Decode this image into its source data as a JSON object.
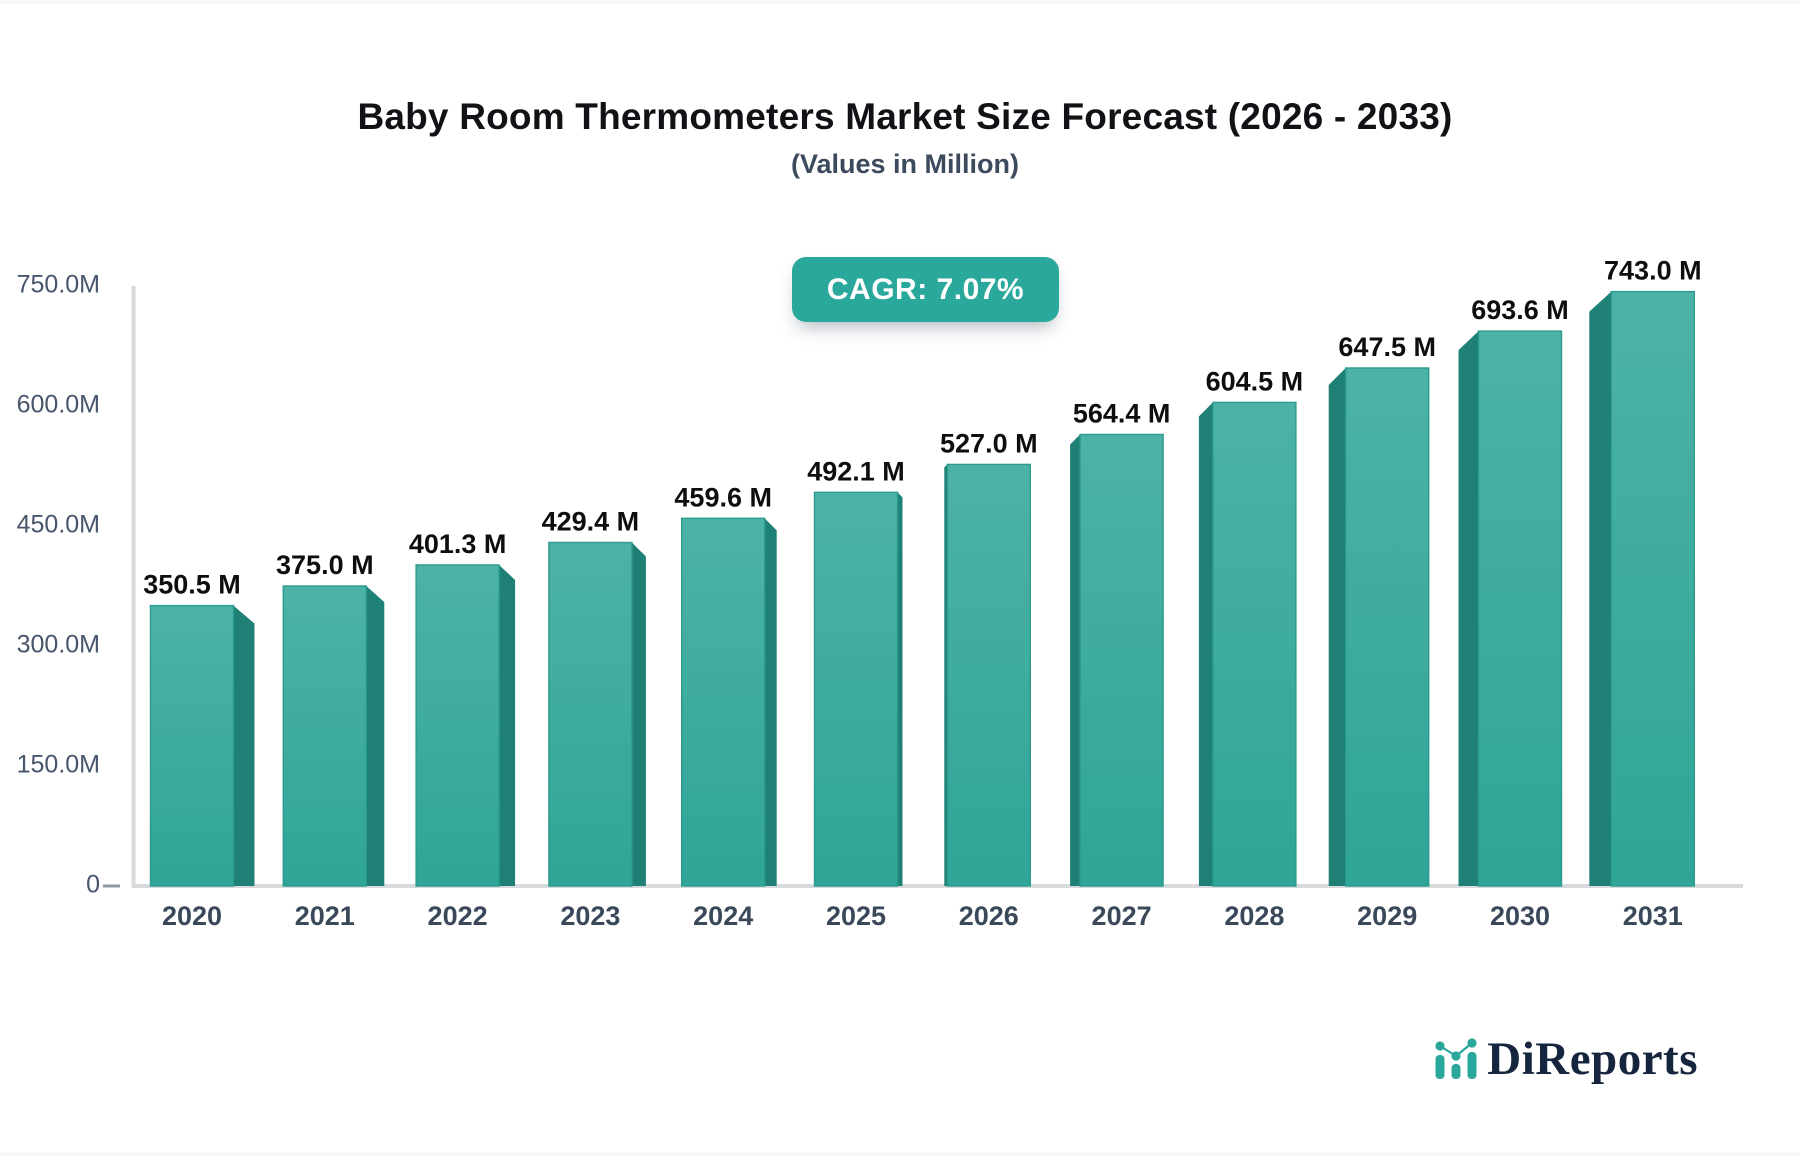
{
  "header": {
    "title": "Baby Room Thermometers Market Size Forecast (2026 - 2033)",
    "subtitle": "(Values in Million)"
  },
  "badge": {
    "label": "CAGR: 7.07%"
  },
  "logo": {
    "text": "DiReports",
    "teal": "#2aa79a",
    "navy": "#16253e"
  },
  "chart_data": {
    "type": "bar",
    "title": "Baby Room Thermometers Market Size Forecast (2026 - 2033)",
    "subtitle": "(Values in Million)",
    "categories": [
      "2020",
      "2021",
      "2022",
      "2023",
      "2024",
      "2025",
      "2026",
      "2027",
      "2028",
      "2029",
      "2030",
      "2031"
    ],
    "values": [
      350.5,
      375.0,
      401.3,
      429.4,
      459.6,
      492.1,
      527.0,
      564.4,
      604.5,
      647.5,
      693.6,
      743.0
    ],
    "value_labels": [
      "350.5 M",
      "375.0 M",
      "401.3 M",
      "429.4 M",
      "459.6 M",
      "492.1 M",
      "527.0 M",
      "564.4 M",
      "604.5 M",
      "647.5 M",
      "693.6 M",
      "743.0 M"
    ],
    "xlabel": "",
    "ylabel": "",
    "ylim": [
      0,
      750
    ],
    "yticks": [
      {
        "label": "750.0M",
        "value": 750
      },
      {
        "label": "600.0M",
        "value": 600
      },
      {
        "label": "450.0M",
        "value": 450
      },
      {
        "label": "300.0M",
        "value": 300
      },
      {
        "label": "150.0M",
        "value": 150
      },
      {
        "label": "0",
        "value": 0
      }
    ],
    "grid": false,
    "legend": "none",
    "colors": {
      "bar_face_top": "#4db2a6",
      "bar_face_bottom": "#2fa597",
      "bar_side": "#1f8076",
      "bar_edge": "#2b9b8e",
      "axis_line": "#d8dade",
      "zero_dash": "#8f98a3",
      "tick_text": "#47566b",
      "year_text": "#3a4859",
      "value_text": "#0d0e10",
      "badge_bg": "#2aa89b"
    }
  }
}
